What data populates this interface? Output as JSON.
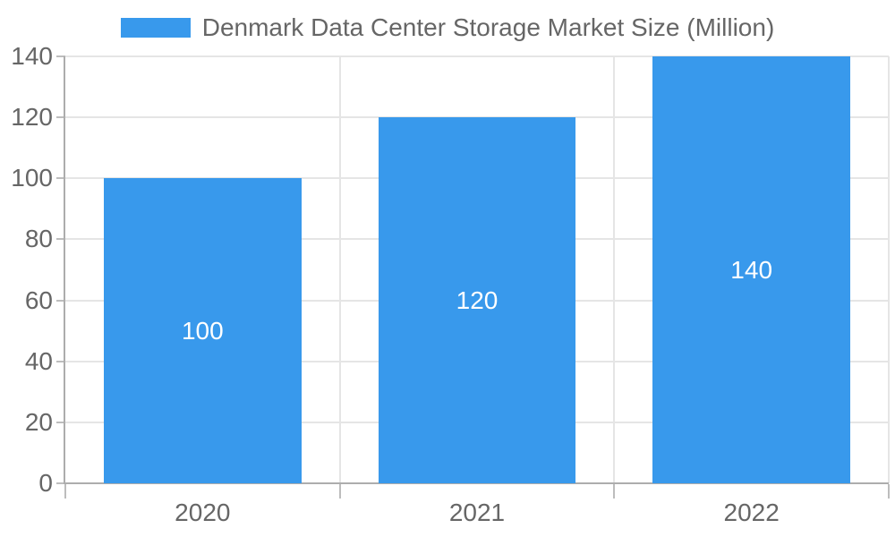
{
  "chart_data": {
    "type": "bar",
    "title": "Denmark Data Center Storage Market Size (Million)",
    "categories": [
      "2020",
      "2021",
      "2022"
    ],
    "values": [
      100,
      120,
      140
    ],
    "series": [
      {
        "name": "Denmark Data Center Storage Market Size (Million)",
        "values": [
          100,
          120,
          140
        ]
      }
    ],
    "xlabel": "",
    "ylabel": "",
    "ylim": [
      0,
      140
    ],
    "yticks": [
      0,
      20,
      40,
      60,
      80,
      100,
      120,
      140
    ],
    "grid": true,
    "legend_position": "top",
    "bar_labels_inside": true,
    "colors": {
      "bar": "#3899EC",
      "text": "#666666",
      "value_label": "#FFFFFF",
      "grid": "#E5E5E5",
      "axis_line": "#ADADAD",
      "tick_mark": "#BDBDBD",
      "background": "#FFFFFF"
    }
  }
}
